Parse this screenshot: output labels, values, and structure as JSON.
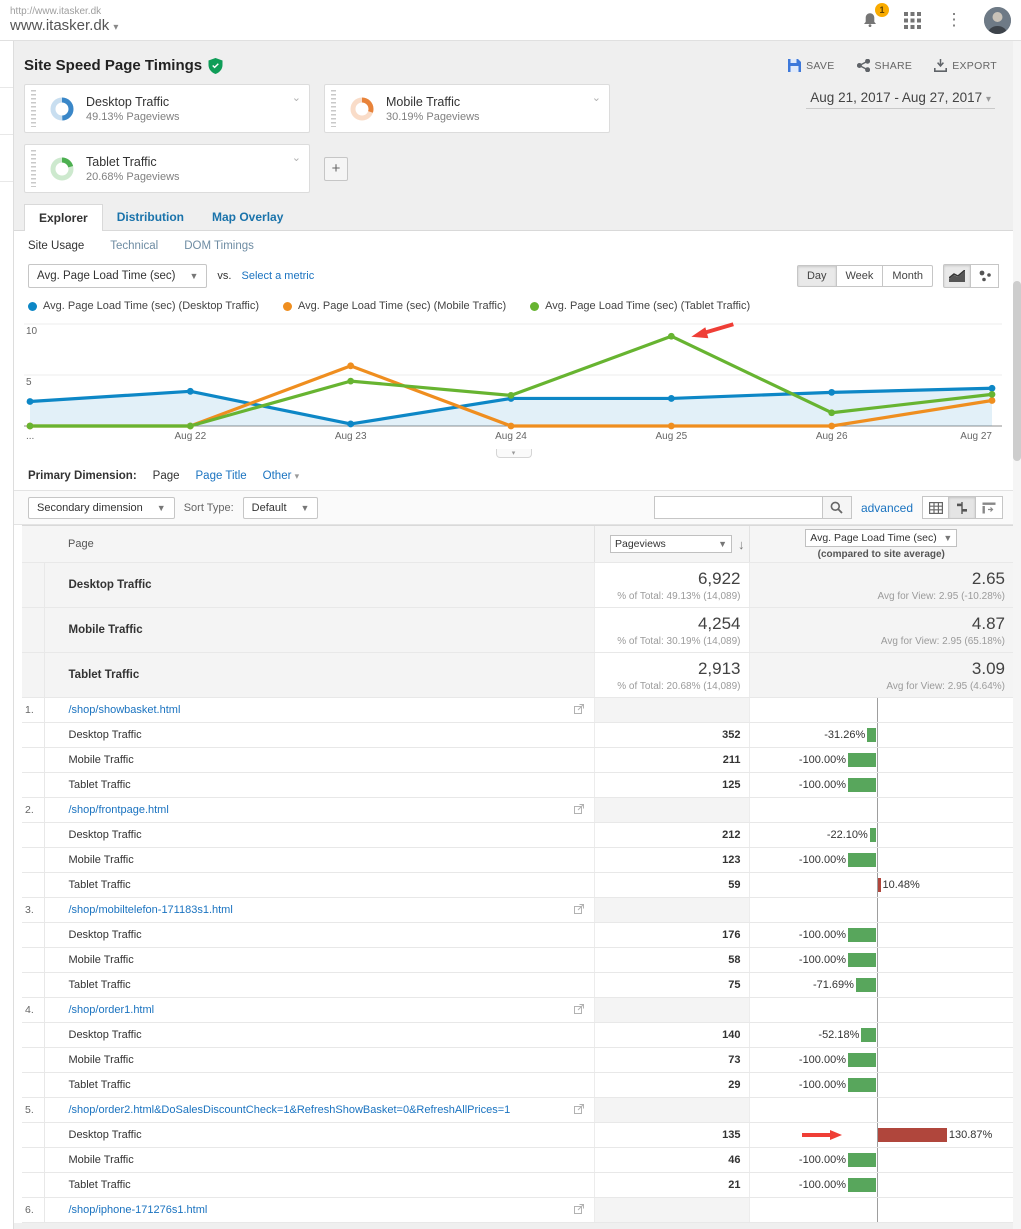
{
  "topbar": {
    "url_small": "http://www.itasker.dk",
    "account_name": "www.itasker.dk",
    "notification_count": "1"
  },
  "header": {
    "title": "Site Speed Page Timings",
    "save_label": "SAVE",
    "share_label": "SHARE",
    "export_label": "EXPORT",
    "date_range": "Aug 21, 2017 - Aug 27, 2017"
  },
  "segments": [
    {
      "name": "Desktop Traffic",
      "sub": "49.13% Pageviews",
      "pct": 49.13,
      "color": "#3a87c8"
    },
    {
      "name": "Mobile Traffic",
      "sub": "30.19% Pageviews",
      "pct": 30.19,
      "color": "#e8833a"
    },
    {
      "name": "Tablet Traffic",
      "sub": "20.68% Pageviews",
      "pct": 20.68,
      "color": "#4caf50"
    }
  ],
  "add_segment_label": "+",
  "tabs": {
    "explorer": "Explorer",
    "distribution": "Distribution",
    "map_overlay": "Map Overlay"
  },
  "subtabs": {
    "site_usage": "Site Usage",
    "technical": "Technical",
    "dom_timings": "DOM Timings"
  },
  "metric_bar": {
    "metric_dropdown": "Avg. Page Load Time (sec)",
    "vs": "vs.",
    "select_metric": "Select a metric",
    "day": "Day",
    "week": "Week",
    "month": "Month"
  },
  "chart_data": {
    "type": "line",
    "title": "Avg. Page Load Time (sec) by day",
    "x": [
      "...",
      "Aug 22",
      "Aug 23",
      "Aug 24",
      "Aug 25",
      "Aug 26",
      "Aug 27"
    ],
    "ylim": [
      0,
      10
    ],
    "yticks": [
      5,
      10
    ],
    "grid": true,
    "legend_position": "top",
    "series": [
      {
        "name": "Avg. Page Load Time (sec) (Desktop Traffic)",
        "color": "#0d87c6",
        "area": true,
        "values": [
          2.4,
          3.4,
          0.2,
          2.7,
          2.7,
          3.3,
          3.7
        ]
      },
      {
        "name": "Avg. Page Load Time (sec) (Mobile Traffic)",
        "color": "#ef8e1f",
        "area": false,
        "values": [
          0,
          0,
          5.9,
          0,
          0,
          0,
          2.5
        ]
      },
      {
        "name": "Avg. Page Load Time (sec) (Tablet Traffic)",
        "color": "#67b431",
        "area": false,
        "values": [
          0,
          0,
          4.4,
          3.0,
          8.8,
          1.3,
          3.1
        ]
      }
    ],
    "annotation": "red arrow pointing at Tablet Traffic peak on Aug 25"
  },
  "primary_dimension": {
    "label": "Primary Dimension:",
    "page": "Page",
    "page_title": "Page Title",
    "other": "Other"
  },
  "toolbar": {
    "secondary_dimension": "Secondary dimension",
    "sort_type_label": "Sort Type:",
    "sort_type_value": "Default",
    "search_value": "",
    "advanced": "advanced"
  },
  "table": {
    "headers": {
      "page": "Page",
      "pageviews": "Pageviews",
      "avg_load": "Avg. Page Load Time (sec)",
      "avg_caption": "(compared to site average)"
    },
    "summary": [
      {
        "label": "Desktop Traffic",
        "pageviews": "6,922",
        "pv_sub": "% of Total: 49.13% (14,089)",
        "avg": "2.65",
        "avg_sub": "Avg for View: 2.95 (-10.28%)"
      },
      {
        "label": "Mobile Traffic",
        "pageviews": "4,254",
        "pv_sub": "% of Total: 30.19% (14,089)",
        "avg": "4.87",
        "avg_sub": "Avg for View: 2.95 (65.18%)"
      },
      {
        "label": "Tablet Traffic",
        "pageviews": "2,913",
        "pv_sub": "% of Total: 20.68% (14,089)",
        "avg": "3.09",
        "avg_sub": "Avg for View: 2.95 (4.64%)"
      }
    ],
    "pages": [
      {
        "n": "1.",
        "url": "/shop/showbasket.html",
        "rows": [
          {
            "label": "Desktop Traffic",
            "pageviews": "352",
            "delta": "-31.26%"
          },
          {
            "label": "Mobile Traffic",
            "pageviews": "211",
            "delta": "-100.00%"
          },
          {
            "label": "Tablet Traffic",
            "pageviews": "125",
            "delta": "-100.00%"
          }
        ]
      },
      {
        "n": "2.",
        "url": "/shop/frontpage.html",
        "rows": [
          {
            "label": "Desktop Traffic",
            "pageviews": "212",
            "delta": "-22.10%"
          },
          {
            "label": "Mobile Traffic",
            "pageviews": "123",
            "delta": "-100.00%"
          },
          {
            "label": "Tablet Traffic",
            "pageviews": "59",
            "delta": "10.48%"
          }
        ]
      },
      {
        "n": "3.",
        "url": "/shop/mobiltelefon-171183s1.html",
        "rows": [
          {
            "label": "Desktop Traffic",
            "pageviews": "176",
            "delta": "-100.00%"
          },
          {
            "label": "Mobile Traffic",
            "pageviews": "58",
            "delta": "-100.00%"
          },
          {
            "label": "Tablet Traffic",
            "pageviews": "75",
            "delta": "-71.69%"
          }
        ]
      },
      {
        "n": "4.",
        "url": "/shop/order1.html",
        "rows": [
          {
            "label": "Desktop Traffic",
            "pageviews": "140",
            "delta": "-52.18%"
          },
          {
            "label": "Mobile Traffic",
            "pageviews": "73",
            "delta": "-100.00%"
          },
          {
            "label": "Tablet Traffic",
            "pageviews": "29",
            "delta": "-100.00%"
          }
        ]
      },
      {
        "n": "5.",
        "url": "/shop/order2.html&DoSalesDiscountCheck=1&RefreshShowBasket=0&RefreshAllPrices=1",
        "rows": [
          {
            "label": "Desktop Traffic",
            "pageviews": "135",
            "delta": "130.87%",
            "annotated": true
          },
          {
            "label": "Mobile Traffic",
            "pageviews": "46",
            "delta": "-100.00%"
          },
          {
            "label": "Tablet Traffic",
            "pageviews": "21",
            "delta": "-100.00%"
          }
        ]
      },
      {
        "n": "6.",
        "url": "/shop/iphone-171276s1.html",
        "rows": []
      }
    ],
    "bar_colors": {
      "negative": "#58a65c",
      "positive": "#b0463c"
    }
  }
}
